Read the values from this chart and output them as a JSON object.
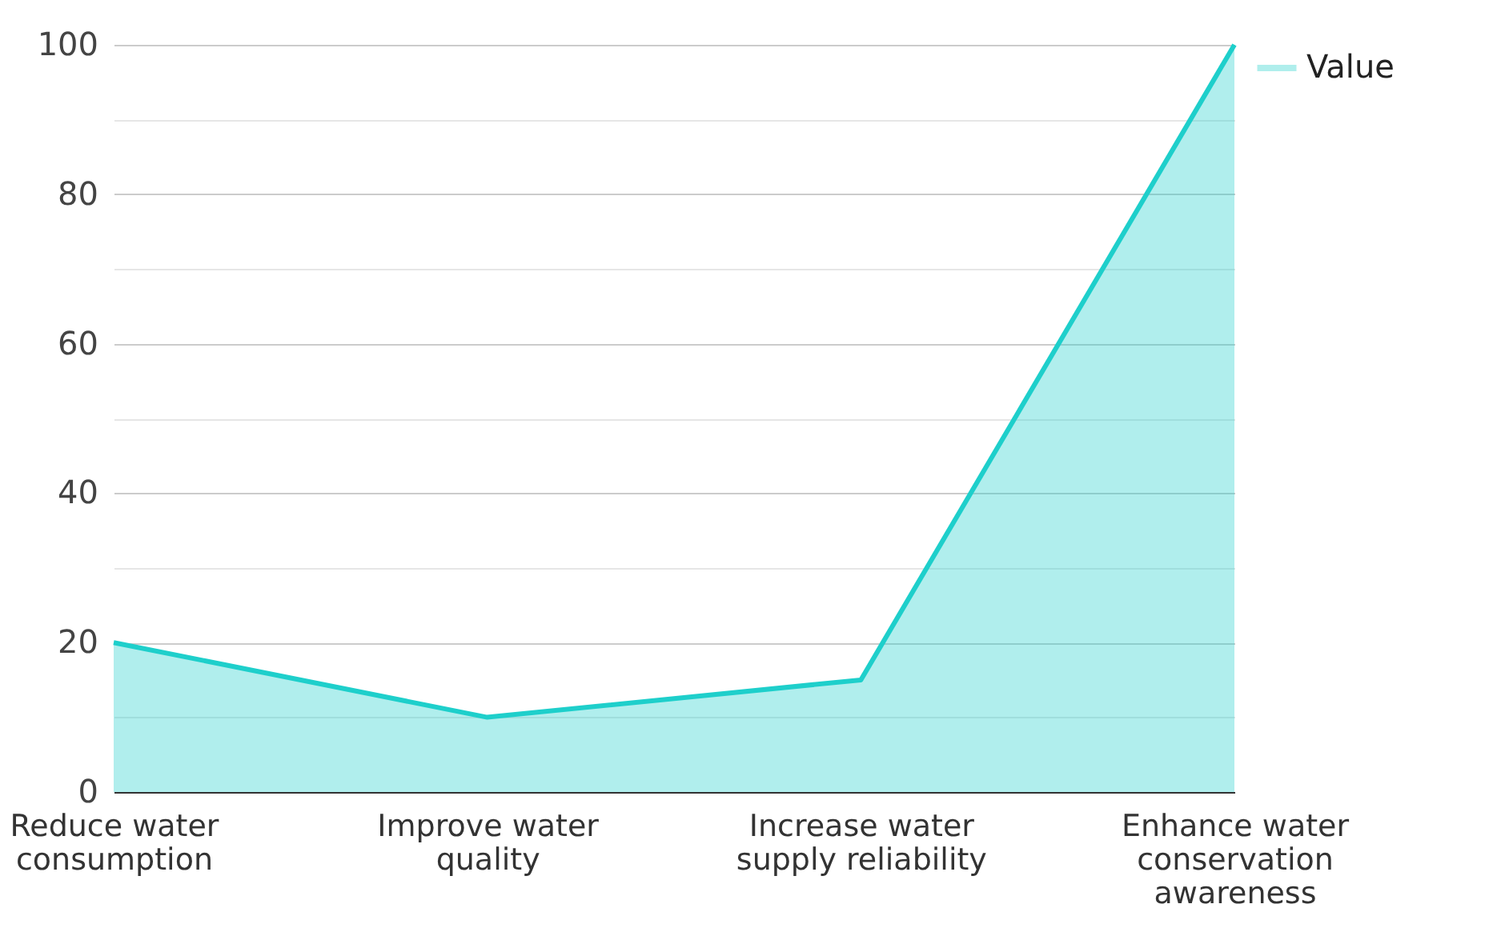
{
  "chart_data": {
    "type": "area",
    "categories": [
      "Reduce water consumption",
      "Improve water quality",
      "Increase water supply reliability",
      "Enhance water conservation awareness"
    ],
    "series": [
      {
        "name": "Value",
        "color": "#1ecfcb",
        "values": [
          20,
          10,
          15,
          100
        ]
      }
    ],
    "ylim": [
      0,
      100
    ],
    "yticks": [
      0,
      {
        "value": 10,
        "label": null
      },
      20,
      {
        "value": 30,
        "label": null
      },
      40,
      {
        "value": 50,
        "label": null
      },
      60,
      {
        "value": 70,
        "label": null
      },
      80,
      {
        "value": 90,
        "label": null
      },
      100
    ],
    "grid": "y",
    "legend": "top right"
  }
}
